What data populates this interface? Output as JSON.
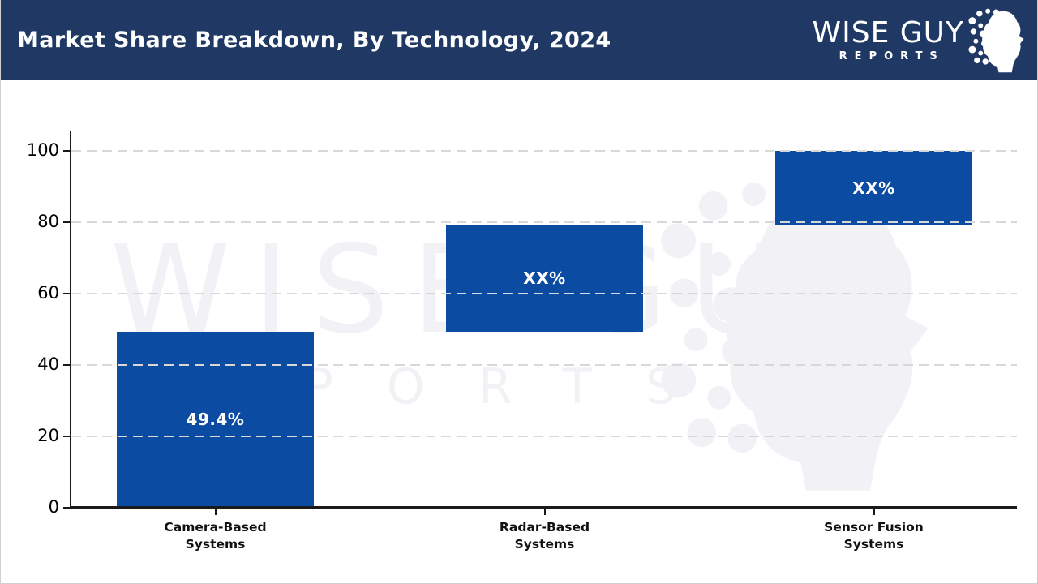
{
  "header": {
    "title": "Market Share Breakdown, By Technology, 2024",
    "logo": {
      "line1": "WISE GUY",
      "line2": "REPORTS"
    }
  },
  "watermark": {
    "line1": "WISE GUY",
    "line2": "REPORTS"
  },
  "colors": {
    "header_bg": "#1F3864",
    "bar": "#0B4BA1",
    "bar_label": "#FFFFFF",
    "axis": "#1A1A1A",
    "gridline": "#D8D8D8",
    "watermark": "#F2F2F6",
    "text": "#111111"
  },
  "chart_data": {
    "type": "bar",
    "subtype": "waterfall",
    "title": "Market Share Breakdown, By Technology, 2024",
    "categories": [
      "Camera-Based Systems",
      "Radar-Based Systems",
      "Sensor Fusion Systems"
    ],
    "category_lines": [
      [
        "Camera-Based",
        "Systems"
      ],
      [
        "Radar-Based",
        "Systems"
      ],
      [
        "Sensor Fusion",
        "Systems"
      ]
    ],
    "bar_labels": [
      "49.4%",
      "XX%",
      "XX%"
    ],
    "segments": [
      [
        0,
        49.4
      ],
      [
        49.4,
        79.2
      ],
      [
        79.2,
        100
      ]
    ],
    "yticks": [
      0,
      20,
      40,
      60,
      80,
      100
    ],
    "ylim": [
      0,
      105.5
    ],
    "xlabel": "",
    "ylabel": "",
    "grid": "horizontal-dashed",
    "legend": "none",
    "bar_color": "#0B4BA1"
  }
}
